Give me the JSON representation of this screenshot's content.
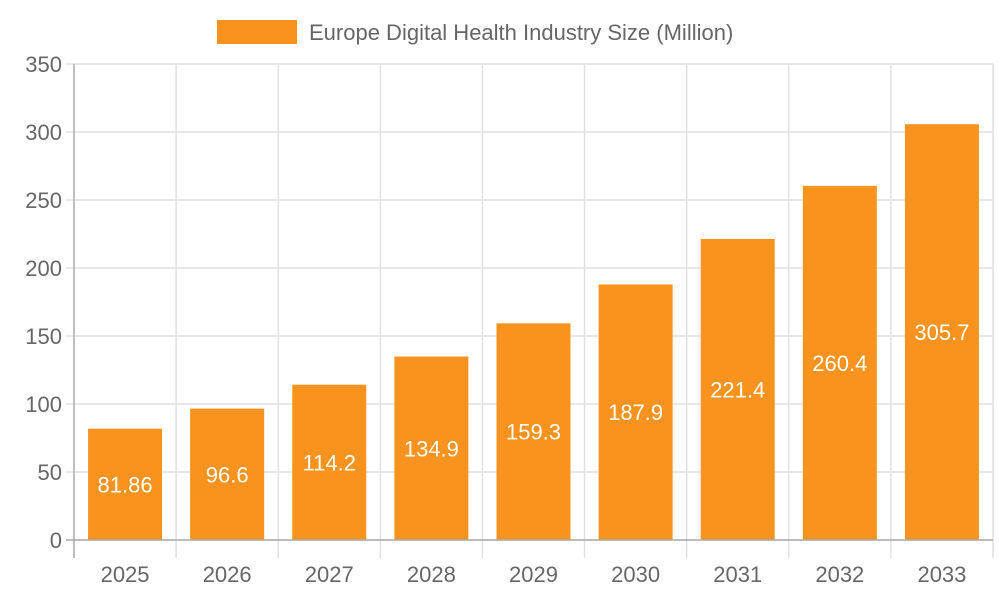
{
  "chart_data": {
    "type": "bar",
    "title": "",
    "legend": {
      "entries": [
        "Europe Digital Health Industry Size (Million)"
      ],
      "placement": "top"
    },
    "categories": [
      "2025",
      "2026",
      "2027",
      "2028",
      "2029",
      "2030",
      "2031",
      "2032",
      "2033"
    ],
    "series": [
      {
        "name": "Europe Digital Health Industry Size (Million)",
        "values": [
          81.86,
          96.6,
          114.2,
          134.9,
          159.3,
          187.9,
          221.4,
          260.4,
          305.7
        ],
        "labels": [
          "81.86",
          "96.6",
          "114.2",
          "134.9",
          "159.3",
          "187.9",
          "221.4",
          "260.4",
          "305.7"
        ],
        "color": "#F7931E"
      }
    ],
    "yticks": [
      "0",
      "50",
      "100",
      "150",
      "200",
      "250",
      "300",
      "350"
    ],
    "ylim": [
      0,
      350
    ],
    "xlabel": "",
    "ylabel": "",
    "grid": true
  }
}
